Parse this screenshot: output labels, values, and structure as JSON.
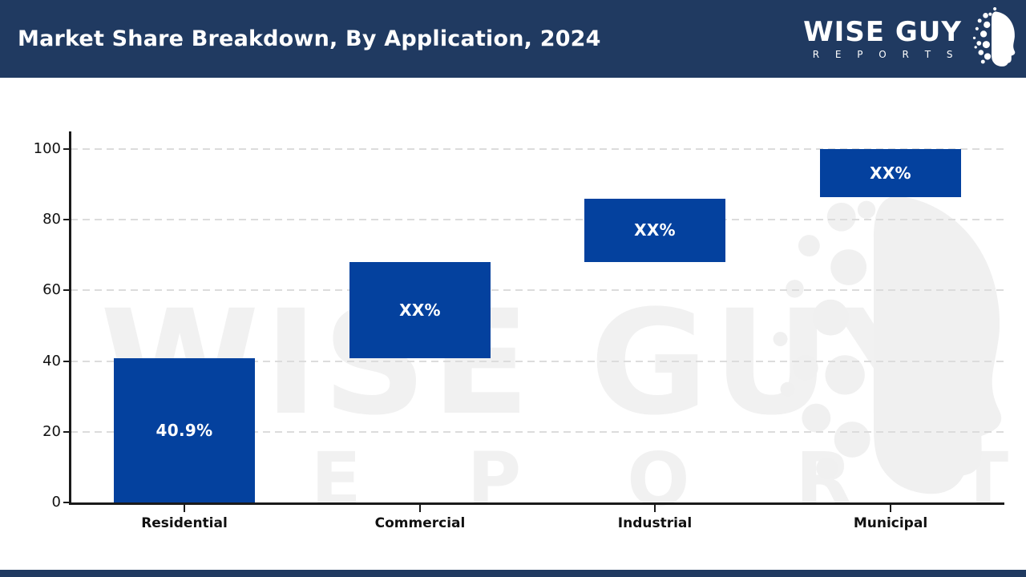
{
  "header": {
    "title": "Market Share Breakdown, By Application, 2024",
    "bg_color": "#203a61",
    "logo": {
      "line1": "WISE GUY",
      "line2": "R E P O R T S"
    }
  },
  "watermark": {
    "line1": "WISE GUY",
    "line2": "R E P O R T S"
  },
  "chart_data": {
    "type": "bar",
    "subtype": "waterfall",
    "title": "Market Share Breakdown, By Application, 2024",
    "categories": [
      "Residential",
      "Commercial",
      "Industrial",
      "Municipal"
    ],
    "bars": [
      {
        "category": "Residential",
        "from": 0,
        "to": 40.9,
        "label": "40.9%"
      },
      {
        "category": "Commercial",
        "from": 40.9,
        "to": 68,
        "label": "XX%"
      },
      {
        "category": "Industrial",
        "from": 68,
        "to": 86,
        "label": "XX%"
      },
      {
        "category": "Municipal",
        "from": 86.5,
        "to": 100,
        "label": "XX%"
      }
    ],
    "yticks": [
      0,
      20,
      40,
      60,
      80,
      100
    ],
    "ylim": [
      0,
      105
    ],
    "xlabel": "",
    "ylabel": "",
    "legend": null,
    "grid": "horizontal-dashed",
    "grid_color": "#dcdcdc",
    "bar_color": "#04419e",
    "bar_label_color": "#ffffff",
    "axis_color": "#1a1a1a"
  },
  "footer": {
    "bg_color": "#203a61"
  }
}
